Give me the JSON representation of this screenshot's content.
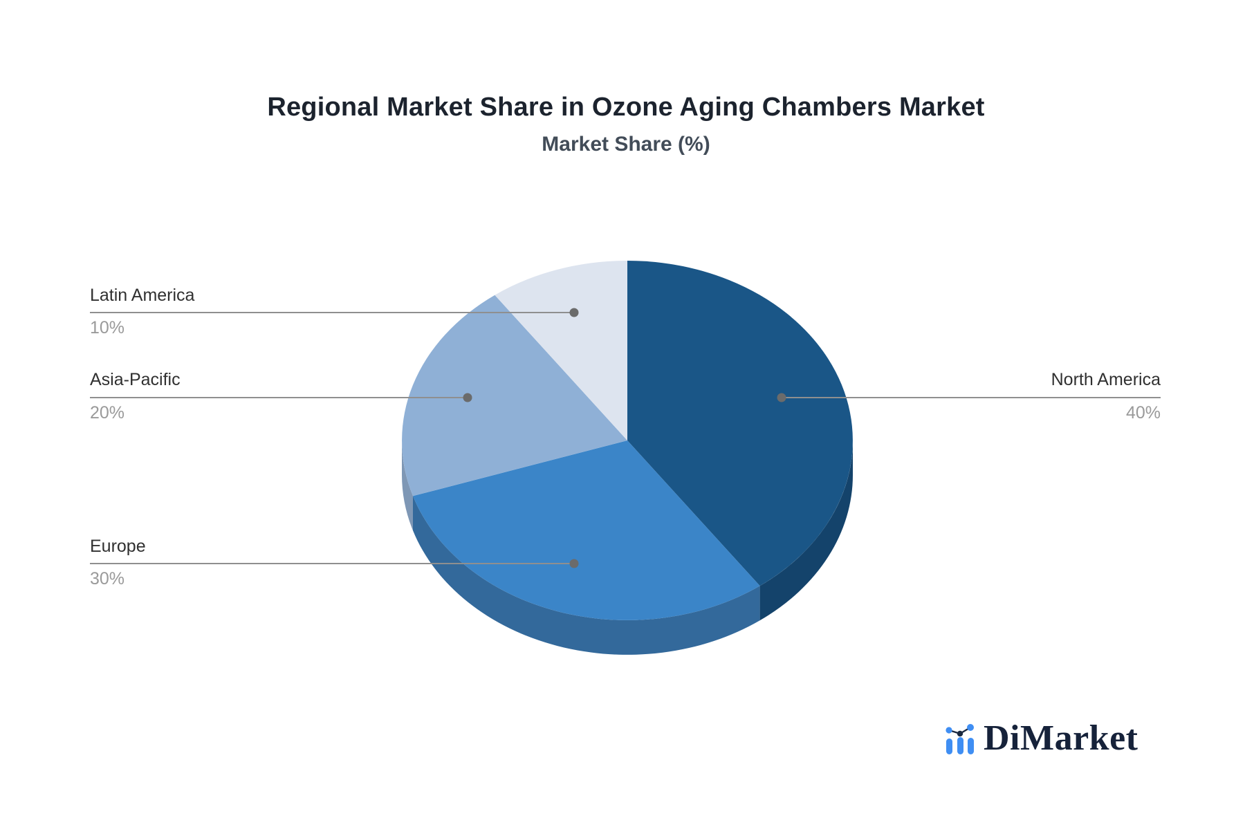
{
  "header": {
    "title": "Regional Market Share in Ozone Aging Chambers Market",
    "subtitle": "Market Share (%)"
  },
  "chart_data": {
    "type": "pie",
    "title": "Regional Market Share in Ozone Aging Chambers Market",
    "subtitle": "Market Share (%)",
    "unit": "%",
    "effect": "3d",
    "start_angle_deg": 0,
    "direction": "clockwise",
    "legend": "none",
    "categories": [
      "North America",
      "Europe",
      "Asia-Pacific",
      "Latin America"
    ],
    "values": [
      40,
      30,
      20,
      10
    ],
    "slices": [
      {
        "label": "North America",
        "value": 40,
        "display": "40%",
        "color": "#1A5687",
        "side_color": "#14436B",
        "label_side": "right"
      },
      {
        "label": "Europe",
        "value": 30,
        "display": "30%",
        "color": "#3B85C8",
        "side_color": "#33699B",
        "label_side": "left"
      },
      {
        "label": "Asia-Pacific",
        "value": 20,
        "display": "20%",
        "color": "#8FB0D6",
        "side_color": "#7E97B5",
        "label_side": "left"
      },
      {
        "label": "Latin America",
        "value": 10,
        "display": "10%",
        "color": "#DDE4EF",
        "side_color": "#C3CCDA",
        "label_side": "left"
      }
    ]
  },
  "colors": {
    "background": "#FFFFFF",
    "title": "#1C232E",
    "subtitle": "#424C58",
    "label": "#303030",
    "value": "#9A9A9A",
    "leader_line": "#8F8F8F",
    "leader_dot": "#6B6B6B",
    "logo_text": "#16223A",
    "logo_icon_blue": "#3F8EF3",
    "logo_icon_dark": "#1B2940"
  },
  "logo": {
    "text": "DiMarket",
    "icon": "bar-line-chart-icon"
  }
}
